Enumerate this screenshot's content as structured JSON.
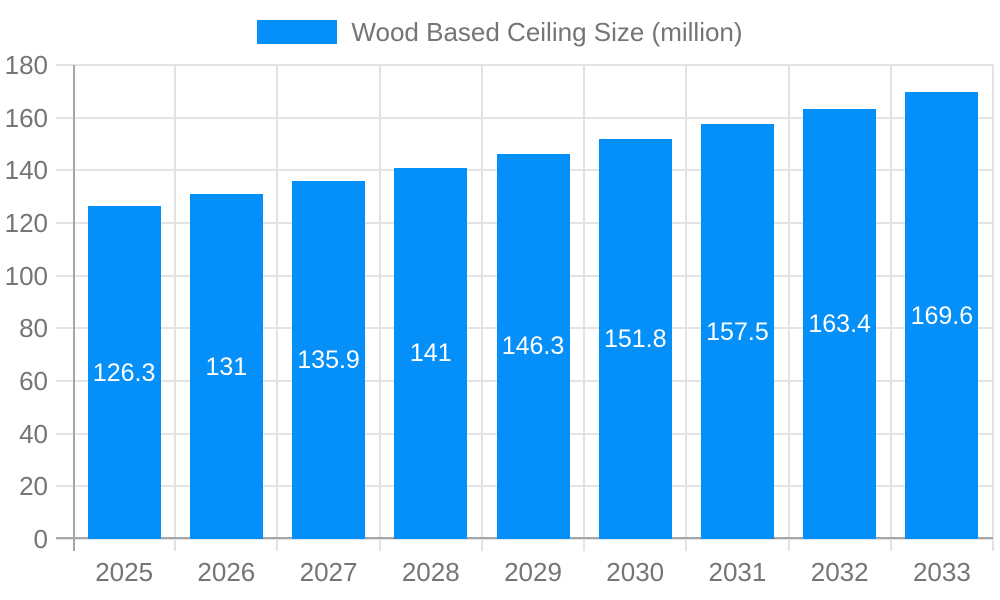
{
  "legend": {
    "label": "Wood Based Ceiling Size (million)"
  },
  "chart_data": {
    "type": "bar",
    "title": "Wood Based Ceiling Size (million)",
    "categories": [
      "2025",
      "2026",
      "2027",
      "2028",
      "2029",
      "2030",
      "2031",
      "2032",
      "2033"
    ],
    "series": [
      {
        "name": "Wood Based Ceiling Size (million)",
        "values": [
          126.3,
          131,
          135.9,
          141,
          146.3,
          151.8,
          157.5,
          163.4,
          169.6
        ]
      }
    ],
    "value_labels": [
      "126.3",
      "131",
      "135.9",
      "141",
      "146.3",
      "151.8",
      "157.5",
      "163.4",
      "169.6"
    ],
    "xlabel": "",
    "ylabel": "",
    "ylim": [
      0,
      180
    ],
    "y_ticks": [
      0,
      20,
      40,
      60,
      80,
      100,
      120,
      140,
      160,
      180
    ],
    "grid": true,
    "legend_position": "top",
    "value_labels_position": "inside-center",
    "colors": {
      "bar": "#0490f8",
      "axis": "#a6a6a6",
      "grid": "#e3e3e3",
      "text": "#757575",
      "bar_label": "#ffffff"
    }
  }
}
